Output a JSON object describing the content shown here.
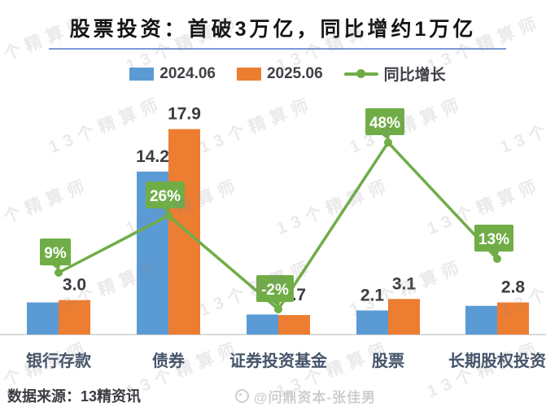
{
  "title": {
    "text": "股票投资：首破3万亿，同比增约1万亿",
    "underline_color": "#7C9AD6"
  },
  "legend": [
    {
      "label": "2024.06",
      "swatch": "square",
      "color": "#5B9BD5"
    },
    {
      "label": "2025.06",
      "swatch": "square",
      "color": "#ED7D31"
    },
    {
      "label": "同比增长",
      "swatch": "line-dot",
      "color": "#70AD47"
    }
  ],
  "chart_data": {
    "type": "bar",
    "subtype": "grouped-bars-with-growth-line",
    "title": "股票投资：首破3万亿，同比增约1万亿",
    "categories": [
      "银行存款",
      "债券",
      "证券投资基金",
      "股票",
      "长期股权投资"
    ],
    "series": [
      {
        "name": "2024.06",
        "color": "#5B9BD5",
        "values": [
          2.8,
          14.2,
          1.75,
          2.1,
          2.5
        ],
        "labels": [
          "",
          "14.2",
          "",
          "2.1",
          ""
        ]
      },
      {
        "name": "2025.06",
        "color": "#ED7D31",
        "values": [
          3.0,
          17.9,
          1.7,
          3.1,
          2.8
        ],
        "labels": [
          "3.0",
          "17.9",
          "1.7",
          "3.1",
          "2.8"
        ]
      }
    ],
    "line_series": {
      "name": "同比增长",
      "color": "#70AD47",
      "values_pct": [
        9,
        26,
        -2,
        48,
        13
      ],
      "labels": [
        "9%",
        "26%",
        "-2%",
        "48%",
        "13%"
      ]
    },
    "ylim": [
      0,
      19
    ],
    "grid": false,
    "legend_position": "top",
    "axis_color": "#D9D9D9",
    "value_label_color": "#3b3b42",
    "category_label_color": "#44546A"
  },
  "watermark": {
    "tile_text": "13个精算师",
    "credit": "@问鼎资本-张佳男"
  },
  "source": {
    "text": "数据来源：13精资讯"
  }
}
